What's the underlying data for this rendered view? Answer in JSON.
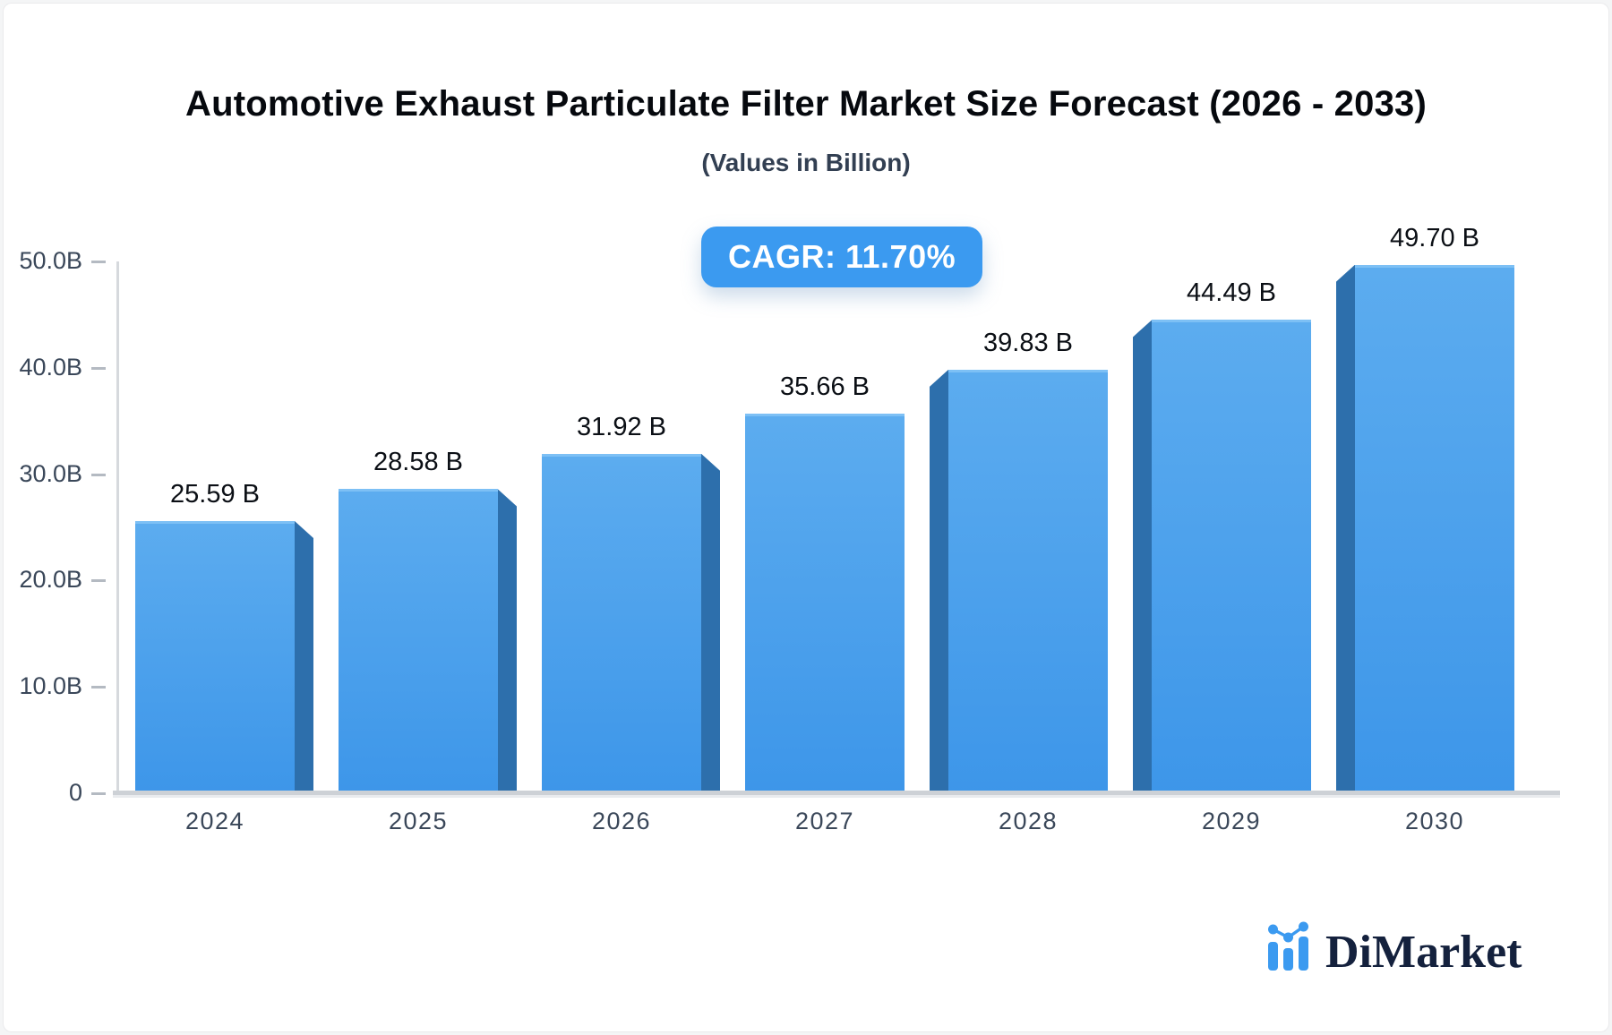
{
  "title": "Automotive Exhaust Particulate Filter Market Size Forecast (2026 - 2033)",
  "subtitle": "(Values in Billion)",
  "badge": {
    "label": "CAGR: 11.70%"
  },
  "logo": {
    "brand": "DiMarket"
  },
  "chart_data": {
    "type": "bar",
    "title": "Automotive Exhaust Particulate Filter Market Size Forecast (2026 - 2033)",
    "subtitle": "(Values in Billion)",
    "categories": [
      "2024",
      "2025",
      "2026",
      "2027",
      "2028",
      "2029",
      "2030"
    ],
    "values": [
      25.59,
      28.58,
      31.92,
      35.66,
      39.83,
      44.49,
      49.7
    ],
    "value_labels": [
      "25.59 B",
      "28.58 B",
      "31.92 B",
      "35.66 B",
      "39.83 B",
      "44.49 B",
      "49.70 B"
    ],
    "xlabel": "",
    "ylabel": "",
    "ylim": [
      0,
      50
    ],
    "ytick_values": [
      0,
      10,
      20,
      30,
      40,
      50
    ],
    "ytick_labels": [
      "0",
      "10.0B",
      "20.0B",
      "30.0B",
      "40.0B",
      "50.0B"
    ],
    "grid": false,
    "legend": false,
    "annotations": [
      "CAGR: 11.70%"
    ],
    "bar_style": "3d-extruded, side faces angled toward center bar",
    "colors": {
      "bar_face_top": "#5CACEF",
      "bar_face_bottom": "#3D96E9",
      "bar_face_highlight": "#7DC0F5",
      "bar_side": "#2D6FAC",
      "axis_line": "#D6D9DD",
      "baseline": "#CDD1D6",
      "baseline_shadow": "#E9EBEE",
      "tick_dash": "#B4BAC2",
      "tick_label": "#3A4759",
      "category_label": "#3A4759",
      "value_label": "#0B0F15",
      "badge_bg": "#3B9AF0",
      "badge_text": "#FFFFFF",
      "logo_text": "#14213D",
      "logo_icon": "#3B9AF0"
    }
  }
}
